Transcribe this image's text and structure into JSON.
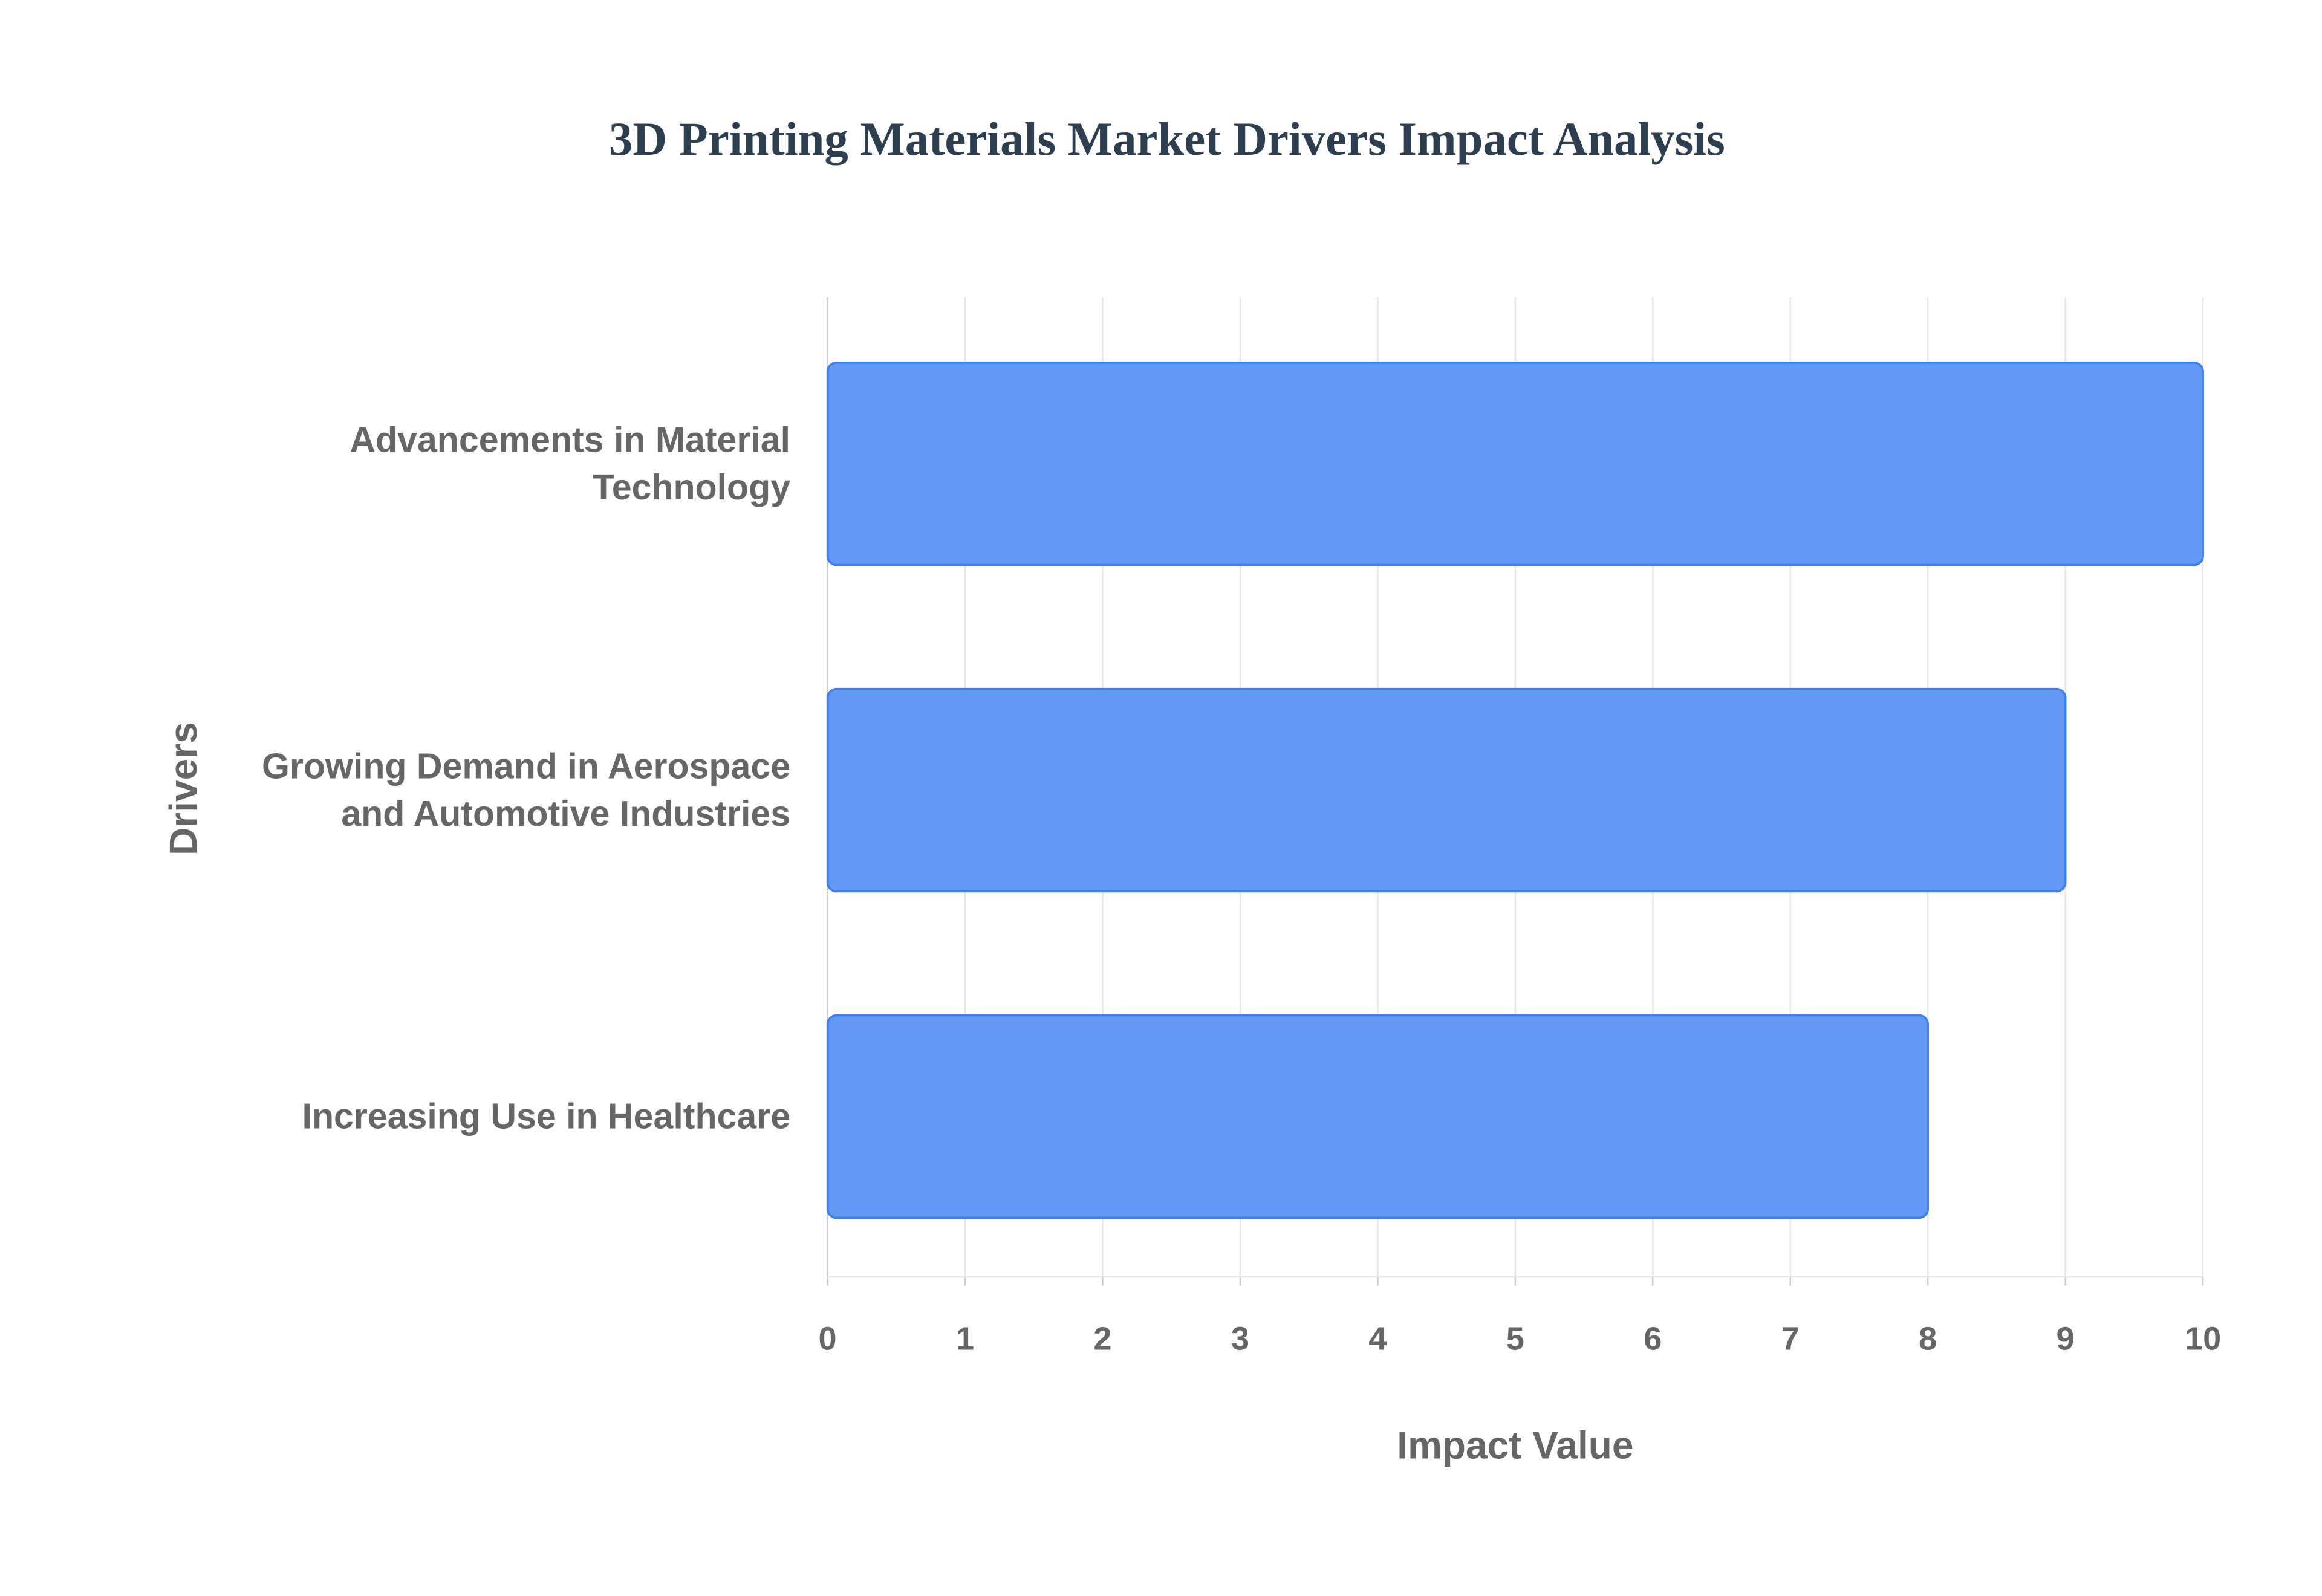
{
  "chart_data": {
    "type": "bar",
    "orientation": "horizontal",
    "title": "3D Printing Materials Market Drivers Impact Analysis",
    "x_label": "Impact Value",
    "y_label": "Drivers",
    "categories": [
      "Advancements in Material Technology",
      "Growing Demand in Aerospace and Automotive Industries",
      "Increasing Use in Healthcare"
    ],
    "values": [
      10,
      9,
      8
    ],
    "color": "#6399f5",
    "xlim": [
      0,
      10
    ],
    "xticks": [
      0,
      1,
      2,
      3,
      4,
      5,
      6,
      7,
      8,
      9,
      10
    ],
    "grid": true
  }
}
